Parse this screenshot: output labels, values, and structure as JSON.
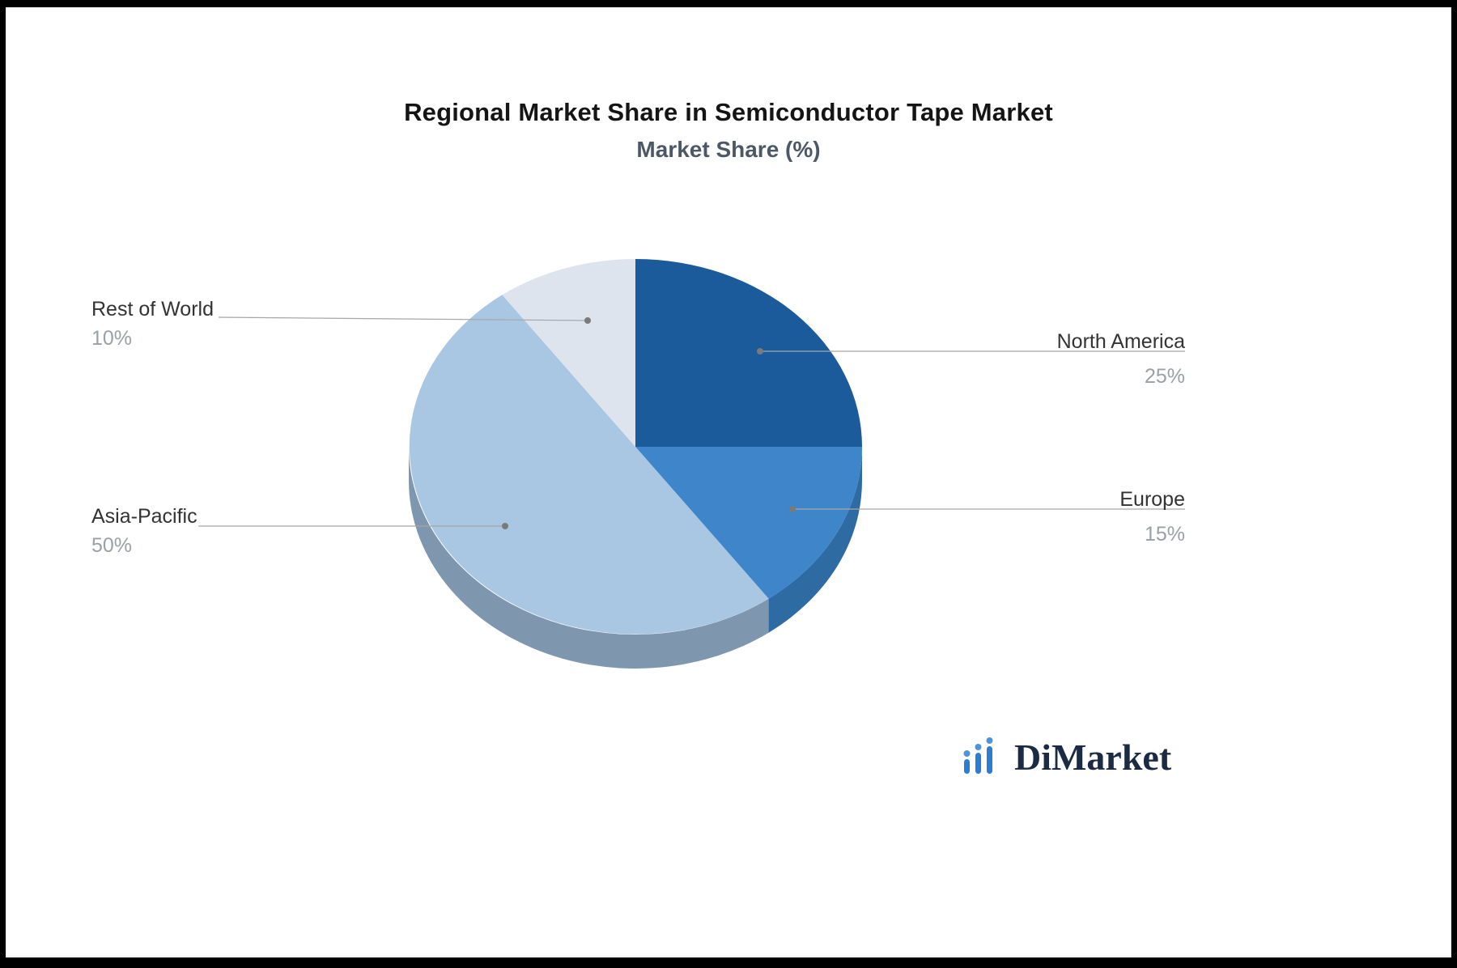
{
  "page": {
    "title": "Regional Market Share in Semiconductor Tape Market",
    "subtitle": "Market Share (%)"
  },
  "brand": {
    "name": "DiMarket",
    "icon": "bar-chart-logo-icon",
    "text_color": "#1c2b44",
    "icon_color": "#2e7cd1",
    "icon_dot_color": "#4d94dd"
  },
  "chart_data": {
    "type": "pie",
    "title": "Regional Market Share in Semiconductor Tape Market",
    "subtitle": "Market Share (%)",
    "unit": "%",
    "style": "3d-pie",
    "start_angle_deg": -90,
    "direction": "clockwise",
    "legend_position": "callout-labels",
    "slices": [
      {
        "label": "North America",
        "value": 25,
        "display": "25%",
        "color": "#1b5a9b",
        "side_color": "#14477c"
      },
      {
        "label": "Europe",
        "value": 15,
        "display": "15%",
        "color": "#3e86c9",
        "side_color": "#2f6ba3"
      },
      {
        "label": "Asia-Pacific",
        "value": 50,
        "display": "50%",
        "color": "#a9c6e3",
        "side_color": "#7e96ae"
      },
      {
        "label": "Rest of World",
        "value": 10,
        "display": "10%",
        "color": "#dde4ee",
        "side_color": "#a9b3c2"
      }
    ]
  }
}
